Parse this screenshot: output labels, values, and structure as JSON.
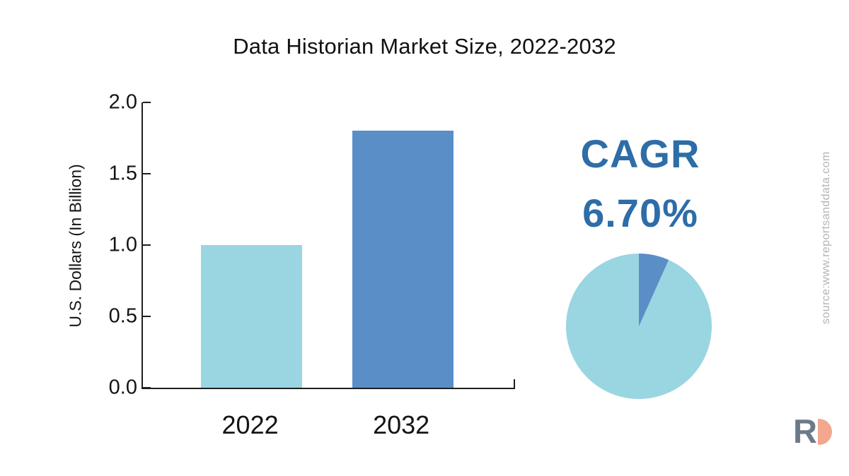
{
  "title": "Data Historian Market Size, 2022-2032",
  "chart_data": [
    {
      "type": "bar",
      "title": "Data Historian Market Size, 2022-2032",
      "categories": [
        "2022",
        "2032"
      ],
      "values": [
        1.0,
        1.8
      ],
      "bar_colors": [
        "#9ad5e2",
        "#5a8ec6"
      ],
      "xlabel": "",
      "ylabel": "U.S. Dollars (In Billion)",
      "ylim": [
        0.0,
        2.0
      ],
      "yticks": [
        0.0,
        0.5,
        1.0,
        1.5,
        2.0
      ],
      "grid": false,
      "legend": "none",
      "layout": {
        "bar_centers_frac": [
          0.292,
          0.698
        ],
        "bar_width_frac": 0.272,
        "axis_color": "#1f1f1f"
      }
    },
    {
      "type": "pie",
      "slices": [
        {
          "label": "CAGR 6.70%",
          "value": 6.7,
          "color": "#5a8ec6"
        },
        {
          "label": "remainder",
          "value": 93.3,
          "color": "#9ad5e2"
        }
      ],
      "start_angle_deg": 0,
      "direction": "clockwise",
      "legend_position": "none"
    }
  ],
  "cagr_callout": {
    "label": "CAGR",
    "value": "6.70%",
    "color": "#2d6da8"
  },
  "source": {
    "text": "source:www.reportsanddata.com"
  },
  "logo": {
    "letter": "R",
    "r_color": "#6b7a89",
    "d_color": "#f3a78d"
  }
}
